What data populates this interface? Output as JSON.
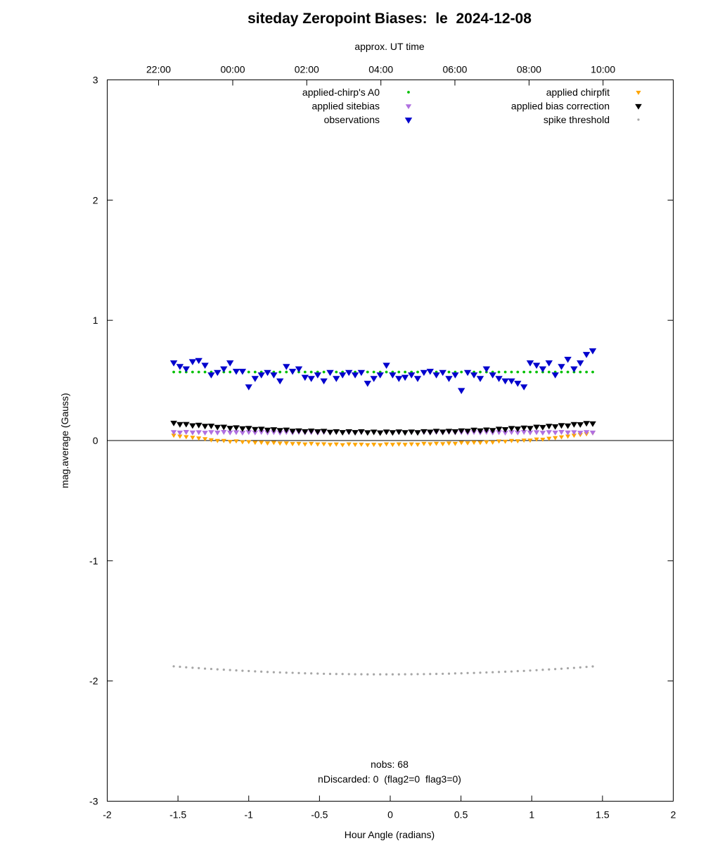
{
  "page": {
    "background": "#ffffff"
  },
  "chart_data": {
    "type": "scatter",
    "title": "siteday Zeropoint Biases:  le  2024-12-08",
    "top_axis_label": "approx. UT time",
    "xlabel": "Hour Angle (radians)",
    "ylabel": "mag.average (Gauss)",
    "xlim": [
      -2,
      2
    ],
    "ylim": [
      -3,
      3
    ],
    "grid": false,
    "legend_position": "top-inside-two-columns",
    "x_ticks": [
      -2,
      -1.5,
      -1,
      -0.5,
      0,
      0.5,
      1,
      1.5,
      2
    ],
    "y_ticks": [
      3,
      2,
      1,
      0,
      -1,
      -2,
      -3
    ],
    "top_axis_ticks": [
      {
        "label": "22:00",
        "x": -1.637
      },
      {
        "label": "00:00",
        "x": -1.113
      },
      {
        "label": "02:00",
        "x": -0.59
      },
      {
        "label": "04:00",
        "x": -0.066
      },
      {
        "label": "06:00",
        "x": 0.457
      },
      {
        "label": "08:00",
        "x": 0.981
      },
      {
        "label": "10:00",
        "x": 1.504
      }
    ],
    "annotations": [
      "nobs: 68",
      "nDiscarded: 0  (flag2=0  flag3=0)"
    ],
    "x": [
      -1.53,
      -1.486,
      -1.442,
      -1.397,
      -1.353,
      -1.309,
      -1.265,
      -1.221,
      -1.176,
      -1.132,
      -1.088,
      -1.044,
      -1.0,
      -0.955,
      -0.911,
      -0.867,
      -0.823,
      -0.779,
      -0.734,
      -0.69,
      -0.646,
      -0.602,
      -0.558,
      -0.513,
      -0.469,
      -0.425,
      -0.381,
      -0.337,
      -0.292,
      -0.248,
      -0.204,
      -0.16,
      -0.116,
      -0.071,
      -0.027,
      0.017,
      0.061,
      0.105,
      0.15,
      0.194,
      0.238,
      0.282,
      0.326,
      0.371,
      0.415,
      0.459,
      0.503,
      0.547,
      0.592,
      0.636,
      0.68,
      0.724,
      0.768,
      0.813,
      0.857,
      0.901,
      0.945,
      0.989,
      1.034,
      1.078,
      1.122,
      1.166,
      1.21,
      1.255,
      1.299,
      1.343,
      1.387,
      1.431
    ],
    "series": [
      {
        "key": "a0",
        "name": "applied-chirp's A0",
        "marker": "dot",
        "color": "#00c000",
        "size": 1.9,
        "legend_column": 0,
        "values": [
          0.57,
          0.57,
          0.57,
          0.57,
          0.57,
          0.57,
          0.57,
          0.57,
          0.57,
          0.57,
          0.57,
          0.57,
          0.57,
          0.57,
          0.57,
          0.57,
          0.57,
          0.57,
          0.57,
          0.57,
          0.57,
          0.57,
          0.57,
          0.57,
          0.57,
          0.57,
          0.57,
          0.57,
          0.57,
          0.57,
          0.57,
          0.57,
          0.57,
          0.57,
          0.57,
          0.57,
          0.57,
          0.57,
          0.57,
          0.57,
          0.57,
          0.57,
          0.57,
          0.57,
          0.57,
          0.57,
          0.57,
          0.57,
          0.57,
          0.57,
          0.57,
          0.57,
          0.57,
          0.57,
          0.57,
          0.57,
          0.57,
          0.57,
          0.57,
          0.57,
          0.57,
          0.57,
          0.57,
          0.57,
          0.57,
          0.57,
          0.57,
          0.57
        ]
      },
      {
        "key": "sitebias",
        "name": "applied sitebias",
        "marker": "triangle-down",
        "color": "#b070e0",
        "size": 4.2,
        "legend_column": 0,
        "values": [
          0.073,
          0.069,
          0.074,
          0.07,
          0.072,
          0.068,
          0.073,
          0.069,
          0.074,
          0.07,
          0.072,
          0.068,
          0.073,
          0.069,
          0.074,
          0.07,
          0.072,
          0.068,
          0.073,
          0.069,
          0.074,
          0.07,
          0.072,
          0.068,
          0.073,
          0.069,
          0.074,
          0.07,
          0.072,
          0.068,
          0.073,
          0.069,
          0.074,
          0.07,
          0.072,
          0.068,
          0.073,
          0.069,
          0.074,
          0.07,
          0.072,
          0.068,
          0.073,
          0.069,
          0.074,
          0.07,
          0.072,
          0.068,
          0.073,
          0.069,
          0.074,
          0.07,
          0.072,
          0.068,
          0.073,
          0.069,
          0.074,
          0.07,
          0.072,
          0.068,
          0.073,
          0.069,
          0.074,
          0.07,
          0.072,
          0.068,
          0.073,
          0.069
        ]
      },
      {
        "key": "observations",
        "name": "observations",
        "marker": "triangle-down",
        "color": "#0000cd",
        "size": 5.2,
        "legend_column": 0,
        "values": [
          0.65,
          0.62,
          0.6,
          0.66,
          0.67,
          0.63,
          0.55,
          0.57,
          0.6,
          0.65,
          0.58,
          0.58,
          0.45,
          0.52,
          0.55,
          0.57,
          0.55,
          0.5,
          0.62,
          0.58,
          0.6,
          0.53,
          0.52,
          0.55,
          0.5,
          0.57,
          0.52,
          0.55,
          0.57,
          0.55,
          0.57,
          0.48,
          0.52,
          0.55,
          0.63,
          0.55,
          0.52,
          0.53,
          0.55,
          0.52,
          0.57,
          0.58,
          0.55,
          0.57,
          0.52,
          0.55,
          0.42,
          0.57,
          0.55,
          0.52,
          0.6,
          0.55,
          0.52,
          0.5,
          0.5,
          0.48,
          0.45,
          0.65,
          0.63,
          0.6,
          0.65,
          0.55,
          0.62,
          0.68,
          0.6,
          0.65,
          0.72,
          0.75
        ]
      },
      {
        "key": "chirpfit",
        "name": "applied chirpfit",
        "marker": "triangle-down",
        "color": "#ffa500",
        "size": 3.6,
        "legend_column": 1,
        "values": [
          0.045,
          0.038,
          0.033,
          0.028,
          0.022,
          0.016,
          0.007,
          0.001,
          0.001,
          -0.006,
          -0.002,
          -0.009,
          -0.008,
          -0.014,
          -0.013,
          -0.019,
          -0.015,
          -0.02,
          -0.019,
          -0.024,
          -0.023,
          -0.028,
          -0.023,
          -0.028,
          -0.026,
          -0.031,
          -0.028,
          -0.033,
          -0.027,
          -0.031,
          -0.029,
          -0.033,
          -0.03,
          -0.034,
          -0.027,
          -0.031,
          -0.027,
          -0.031,
          -0.027,
          -0.03,
          -0.023,
          -0.026,
          -0.022,
          -0.025,
          -0.02,
          -0.023,
          -0.015,
          -0.018,
          -0.013,
          -0.015,
          -0.01,
          -0.012,
          -0.003,
          -0.005,
          0.001,
          -0.001,
          0.005,
          0.004,
          0.013,
          0.012,
          0.02,
          0.025,
          0.032,
          0.038,
          0.045,
          0.052,
          0.058,
          0.065
        ]
      },
      {
        "key": "biascorr",
        "name": "applied bias correction",
        "marker": "triangle-down",
        "color": "#000000",
        "size": 4.8,
        "legend_column": 1,
        "values": [
          0.149,
          0.138,
          0.139,
          0.128,
          0.132,
          0.123,
          0.125,
          0.115,
          0.116,
          0.107,
          0.111,
          0.103,
          0.106,
          0.097,
          0.099,
          0.091,
          0.095,
          0.088,
          0.092,
          0.083,
          0.086,
          0.079,
          0.084,
          0.078,
          0.082,
          0.074,
          0.078,
          0.072,
          0.078,
          0.072,
          0.078,
          0.07,
          0.075,
          0.069,
          0.076,
          0.071,
          0.077,
          0.071,
          0.076,
          0.071,
          0.079,
          0.075,
          0.082,
          0.076,
          0.082,
          0.078,
          0.086,
          0.083,
          0.091,
          0.086,
          0.093,
          0.089,
          0.099,
          0.096,
          0.105,
          0.101,
          0.109,
          0.106,
          0.116,
          0.114,
          0.124,
          0.12,
          0.129,
          0.127,
          0.138,
          0.137,
          0.147,
          0.144
        ]
      },
      {
        "key": "spike",
        "name": "spike threshold",
        "marker": "dot",
        "color": "#a6a6a6",
        "size": 1.6,
        "legend_column": 1,
        "values": [
          -1.878,
          -1.882,
          -1.886,
          -1.89,
          -1.893,
          -1.897,
          -1.9,
          -1.903,
          -1.906,
          -1.909,
          -1.912,
          -1.915,
          -1.917,
          -1.92,
          -1.922,
          -1.925,
          -1.927,
          -1.929,
          -1.931,
          -1.932,
          -1.934,
          -1.936,
          -1.937,
          -1.938,
          -1.94,
          -1.941,
          -1.942,
          -1.942,
          -1.943,
          -1.944,
          -1.944,
          -1.945,
          -1.945,
          -1.945,
          -1.945,
          -1.945,
          -1.945,
          -1.944,
          -1.944,
          -1.943,
          -1.943,
          -1.942,
          -1.941,
          -1.94,
          -1.939,
          -1.937,
          -1.936,
          -1.934,
          -1.933,
          -1.931,
          -1.929,
          -1.927,
          -1.925,
          -1.923,
          -1.921,
          -1.918,
          -1.916,
          -1.913,
          -1.91,
          -1.907,
          -1.904,
          -1.901,
          -1.898,
          -1.894,
          -1.891,
          -1.887,
          -1.883,
          -1.879
        ]
      }
    ]
  }
}
